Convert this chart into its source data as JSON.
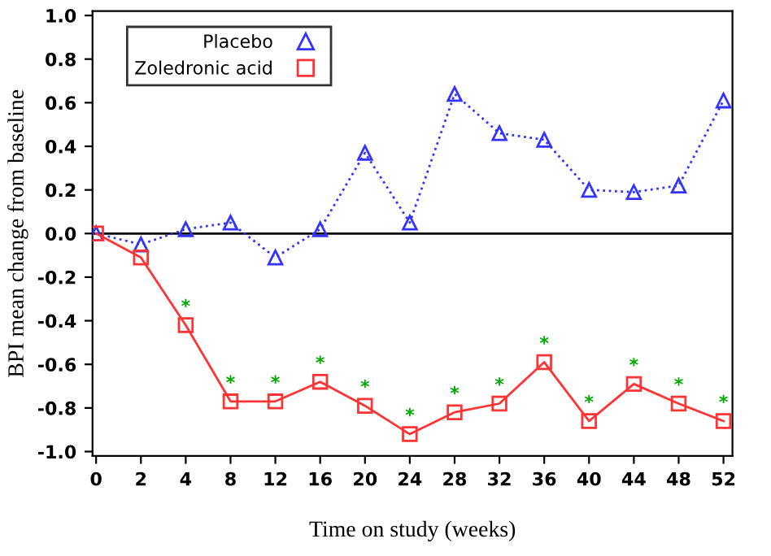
{
  "chart_data": {
    "type": "line",
    "xlabel": "Time on study (weeks)",
    "ylabel": "BPI mean change from baseline",
    "categories": [
      "0",
      "2",
      "4",
      "8",
      "12",
      "16",
      "20",
      "24",
      "28",
      "32",
      "36",
      "40",
      "44",
      "48",
      "52"
    ],
    "series": [
      {
        "name": "Placebo",
        "color": "#3333ff",
        "marker": "triangle",
        "line_style": "dotted",
        "values": [
          0,
          -0.05,
          0.02,
          0.05,
          -0.11,
          0.02,
          0.37,
          0.05,
          0.64,
          0.46,
          0.43,
          0.2,
          0.19,
          0.22,
          0.61
        ]
      },
      {
        "name": "Zoledronic acid",
        "color": "#ff3333",
        "marker": "square",
        "line_style": "solid",
        "values": [
          0,
          -0.11,
          -0.42,
          -0.77,
          -0.77,
          -0.68,
          -0.79,
          -0.92,
          -0.82,
          -0.78,
          -0.59,
          -0.86,
          -0.69,
          -0.78,
          -0.86
        ]
      }
    ],
    "ylim": [
      -1.02,
      1.02
    ],
    "yticks": [
      {
        "value": -1.0,
        "label": "-1.0"
      },
      {
        "value": -0.8,
        "label": "-0.8"
      },
      {
        "value": -0.6,
        "label": "-0.6"
      },
      {
        "value": -0.4,
        "label": "-0.4"
      },
      {
        "value": -0.2,
        "label": "-0.2"
      },
      {
        "value": 0.0,
        "label": "0.0"
      },
      {
        "value": 0.2,
        "label": "0.2"
      },
      {
        "value": 0.4,
        "label": "0.4"
      },
      {
        "value": 0.6,
        "label": "0.6"
      },
      {
        "value": 0.8,
        "label": "0.8"
      },
      {
        "value": 1.0,
        "label": "1.0"
      }
    ],
    "ref_lines": [
      {
        "axis": "y",
        "value": 0,
        "color": "#000000"
      }
    ],
    "annotations": [
      {
        "text": "*",
        "x": "4",
        "y": -0.42
      },
      {
        "text": "*",
        "x": "8",
        "y": -0.77
      },
      {
        "text": "*",
        "x": "12",
        "y": -0.77
      },
      {
        "text": "*",
        "x": "16",
        "y": -0.68
      },
      {
        "text": "*",
        "x": "20",
        "y": -0.79
      },
      {
        "text": "*",
        "x": "24",
        "y": -0.92
      },
      {
        "text": "*",
        "x": "28",
        "y": -0.82
      },
      {
        "text": "*",
        "x": "32",
        "y": -0.78
      },
      {
        "text": "*",
        "x": "36",
        "y": -0.59
      },
      {
        "text": "*",
        "x": "40",
        "y": -0.86
      },
      {
        "text": "*",
        "x": "44",
        "y": -0.69
      },
      {
        "text": "*",
        "x": "48",
        "y": -0.78
      },
      {
        "text": "*",
        "x": "52",
        "y": -0.86
      }
    ],
    "legend": "top left",
    "grid": false
  }
}
